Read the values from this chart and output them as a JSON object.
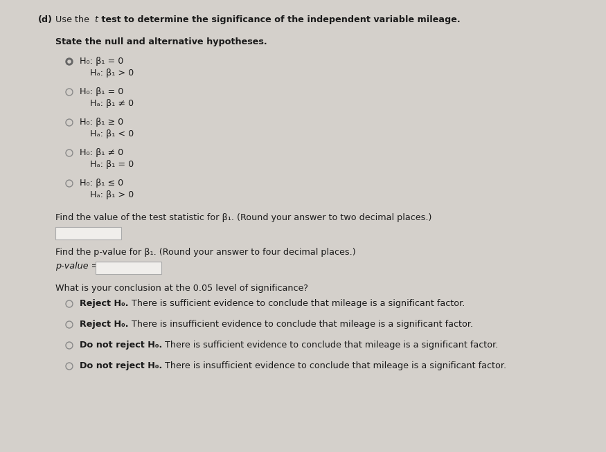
{
  "bg_color": "#d4d0cb",
  "text_color": "#1a1a1a",
  "radio_filled_color": "#666666",
  "radio_empty_color": "#888888",
  "input_box_color": "#f0eeeb",
  "input_box_border": "#aaaaaa",
  "title_prefix": "(d)",
  "title_text": "  Use the  t  test to determine the significance of the independent variable mileage.",
  "subtitle": "State the null and alternative hypotheses.",
  "hyp_pairs": [
    {
      "h0": "H₀: β₁ = 0",
      "ha": "Hₐ: β₁ > 0",
      "selected": true
    },
    {
      "h0": "H₀: β₁ = 0",
      "ha": "Hₐ: β₁ ≠ 0",
      "selected": false
    },
    {
      "h0": "H₀: β₁ ≥ 0",
      "ha": "Hₐ: β₁ < 0",
      "selected": false
    },
    {
      "h0": "H₀: β₁ ≠ 0",
      "ha": "Hₐ: β₁ = 0",
      "selected": false
    },
    {
      "h0": "H₀: β₁ ≤ 0",
      "ha": "Hₐ: β₁ > 0",
      "selected": false
    }
  ],
  "stat_text": "Find the value of the test statistic for β₁. (Round your answer to two decimal places.)",
  "pval_text": "Find the p-value for β₁. (Round your answer to four decimal places.)",
  "pval_label": "p-value =",
  "conc_header": "What is your conclusion at the 0.05 level of significance?",
  "conclusions": [
    {
      "bold": "Reject H₀.",
      "normal": " There is sufficient evidence to conclude that mileage is a significant factor.",
      "selected": false
    },
    {
      "bold": "Reject H₀.",
      "normal": " There is insufficient evidence to conclude that mileage is a significant factor.",
      "selected": false
    },
    {
      "bold": "Do not reject H₀.",
      "normal": " There is sufficient evidence to conclude that mileage is a significant factor.",
      "selected": false
    },
    {
      "bold": "Do not reject H₀.",
      "normal": " There is insufficient evidence to conclude that mileage is a significant factor.",
      "selected": false
    }
  ]
}
